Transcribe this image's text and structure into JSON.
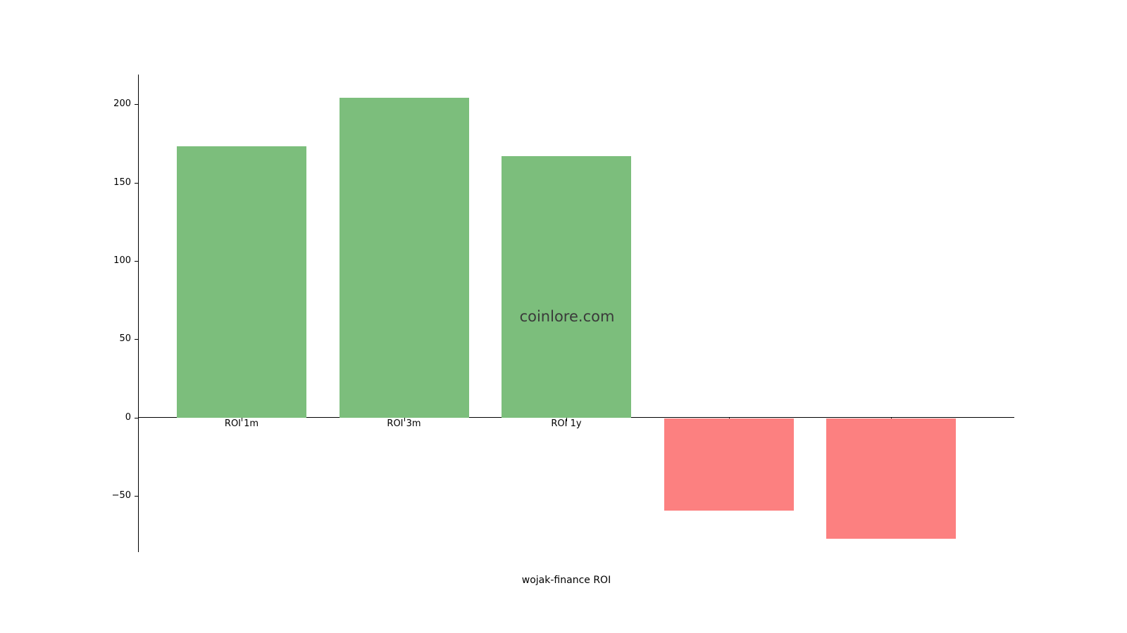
{
  "page": {
    "background": "#ffffff"
  },
  "watermark": {
    "text": "coinlore.com",
    "color": "#3a3a3a"
  },
  "chart_data": {
    "type": "bar",
    "title": "",
    "xlabel": "wojak-finance ROI",
    "ylabel": "",
    "categories": [
      "ROI 1m",
      "ROI 3m",
      "ROI 1y",
      "",
      ""
    ],
    "values": [
      173,
      204,
      167,
      -59,
      -77
    ],
    "bar_colors": [
      "#7cbe7c",
      "#7cbe7c",
      "#7cbe7c",
      "#fc8080",
      "#fc8080"
    ],
    "positive_color": "#7cbe7c",
    "negative_color": "#fc8080",
    "y_ticks": [
      200,
      150,
      100,
      50,
      0,
      -50
    ],
    "y_tick_labels": [
      "200",
      "150",
      "100",
      "50",
      "0",
      "−50"
    ],
    "ylim": [
      -86,
      219
    ],
    "grid": false,
    "legend": "none",
    "axis_color": "#000000"
  }
}
